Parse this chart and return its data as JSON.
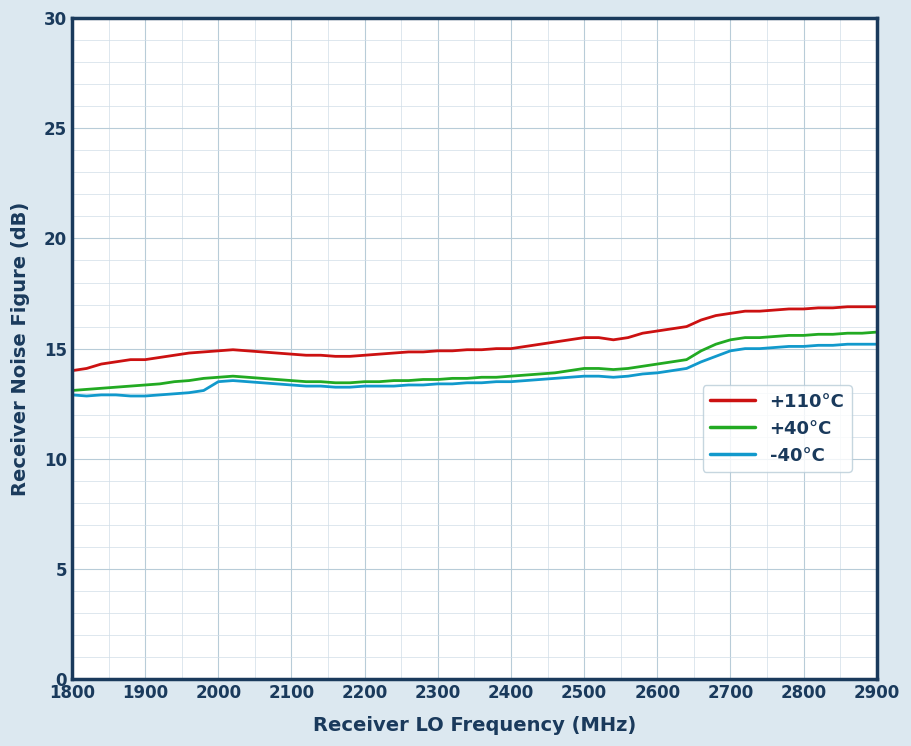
{
  "xlabel": "Receiver LO Frequency (MHz)",
  "ylabel": "Receiver Noise Figure (dB)",
  "xlim": [
    1800,
    2900
  ],
  "ylim": [
    0,
    30
  ],
  "xticks": [
    1800,
    1900,
    2000,
    2100,
    2200,
    2300,
    2400,
    2500,
    2600,
    2700,
    2800,
    2900
  ],
  "yticks": [
    0,
    5,
    10,
    15,
    20,
    25,
    30
  ],
  "figure_bg_color": "#dce8f0",
  "plot_bg_color": "#ffffff",
  "grid_color": "#b8ccd8",
  "minor_grid_color": "#d0dde8",
  "axis_color": "#1a3a5c",
  "label_color": "#1a3a5c",
  "tick_label_color": "#1a3a5c",
  "legend_labels": [
    "+110°C",
    "+40°C",
    "-40°C"
  ],
  "line_colors": [
    "#cc1111",
    "#22aa22",
    "#1199cc"
  ],
  "line_width": 2.0,
  "x": [
    1800,
    1820,
    1840,
    1860,
    1880,
    1900,
    1920,
    1940,
    1960,
    1980,
    2000,
    2020,
    2040,
    2060,
    2080,
    2100,
    2120,
    2140,
    2160,
    2180,
    2200,
    2220,
    2240,
    2260,
    2280,
    2300,
    2320,
    2340,
    2360,
    2380,
    2400,
    2420,
    2440,
    2460,
    2480,
    2500,
    2520,
    2540,
    2560,
    2580,
    2600,
    2620,
    2640,
    2660,
    2680,
    2700,
    2720,
    2740,
    2760,
    2780,
    2800,
    2820,
    2840,
    2860,
    2880,
    2900
  ],
  "y_110": [
    14.0,
    14.1,
    14.3,
    14.4,
    14.5,
    14.5,
    14.6,
    14.7,
    14.8,
    14.85,
    14.9,
    14.95,
    14.9,
    14.85,
    14.8,
    14.75,
    14.7,
    14.7,
    14.65,
    14.65,
    14.7,
    14.75,
    14.8,
    14.85,
    14.85,
    14.9,
    14.9,
    14.95,
    14.95,
    15.0,
    15.0,
    15.1,
    15.2,
    15.3,
    15.4,
    15.5,
    15.5,
    15.4,
    15.5,
    15.7,
    15.8,
    15.9,
    16.0,
    16.3,
    16.5,
    16.6,
    16.7,
    16.7,
    16.75,
    16.8,
    16.8,
    16.85,
    16.85,
    16.9,
    16.9,
    16.9
  ],
  "y_40": [
    13.1,
    13.15,
    13.2,
    13.25,
    13.3,
    13.35,
    13.4,
    13.5,
    13.55,
    13.65,
    13.7,
    13.75,
    13.7,
    13.65,
    13.6,
    13.55,
    13.5,
    13.5,
    13.45,
    13.45,
    13.5,
    13.5,
    13.55,
    13.55,
    13.6,
    13.6,
    13.65,
    13.65,
    13.7,
    13.7,
    13.75,
    13.8,
    13.85,
    13.9,
    14.0,
    14.1,
    14.1,
    14.05,
    14.1,
    14.2,
    14.3,
    14.4,
    14.5,
    14.9,
    15.2,
    15.4,
    15.5,
    15.5,
    15.55,
    15.6,
    15.6,
    15.65,
    15.65,
    15.7,
    15.7,
    15.75
  ],
  "y_m40": [
    12.9,
    12.85,
    12.9,
    12.9,
    12.85,
    12.85,
    12.9,
    12.95,
    13.0,
    13.1,
    13.5,
    13.55,
    13.5,
    13.45,
    13.4,
    13.35,
    13.3,
    13.3,
    13.25,
    13.25,
    13.3,
    13.3,
    13.3,
    13.35,
    13.35,
    13.4,
    13.4,
    13.45,
    13.45,
    13.5,
    13.5,
    13.55,
    13.6,
    13.65,
    13.7,
    13.75,
    13.75,
    13.7,
    13.75,
    13.85,
    13.9,
    14.0,
    14.1,
    14.4,
    14.65,
    14.9,
    15.0,
    15.0,
    15.05,
    15.1,
    15.1,
    15.15,
    15.15,
    15.2,
    15.2,
    15.2
  ],
  "figsize": [
    9.11,
    7.46
  ],
  "dpi": 100
}
